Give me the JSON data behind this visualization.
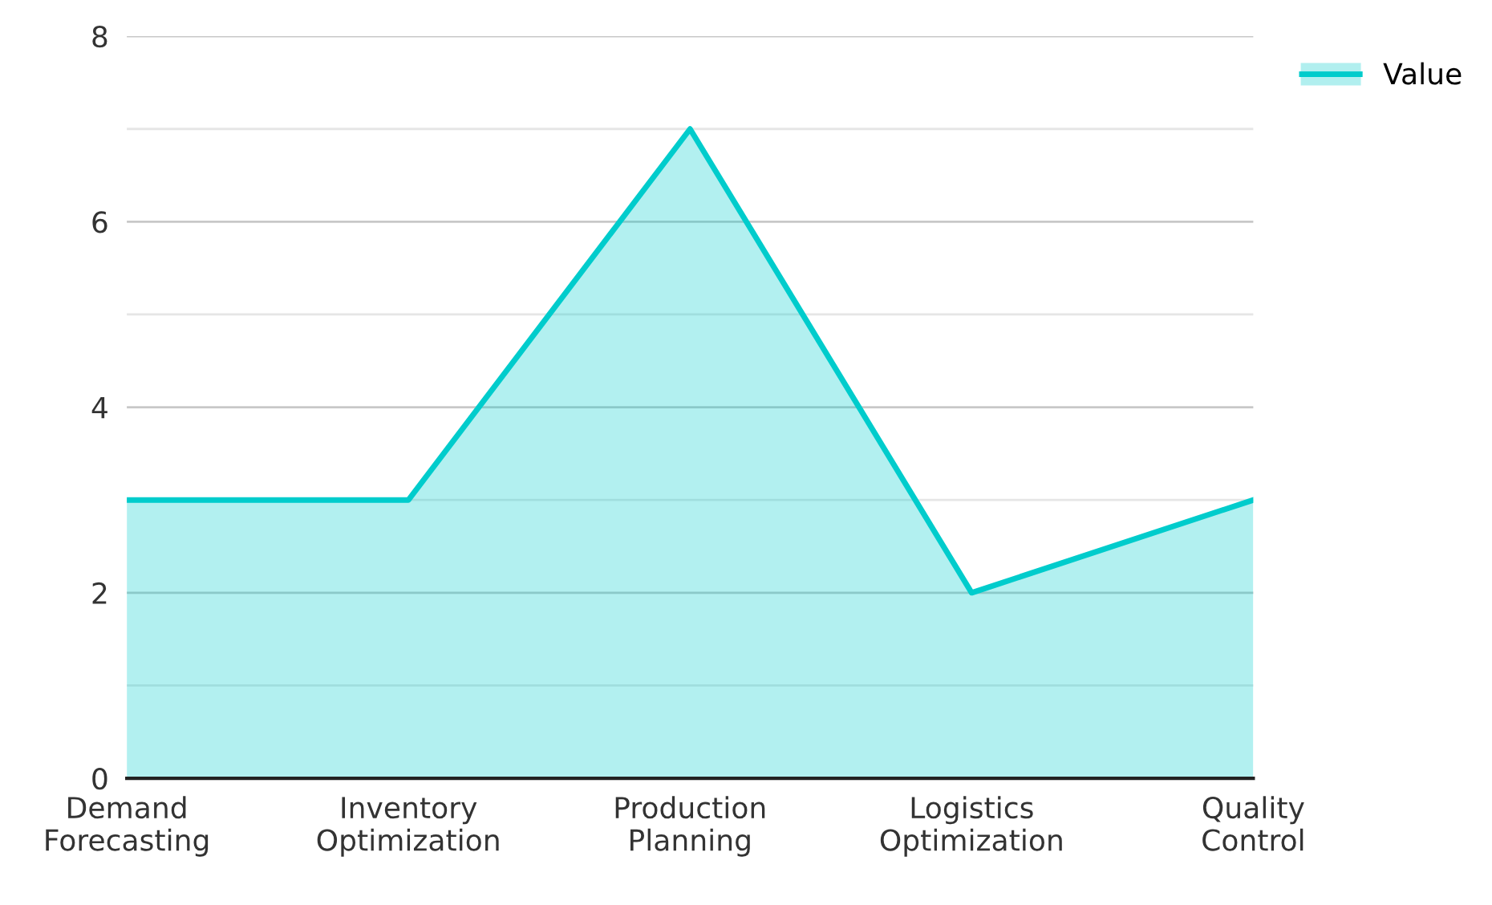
{
  "chart_data": {
    "type": "area",
    "categories": [
      "Demand\nForecasting",
      "Inventory\nOptimization",
      "Production\nPlanning",
      "Logistics\nOptimization",
      "Quality\nControl"
    ],
    "series": [
      {
        "name": "Value",
        "color": "#00cccc",
        "values": [
          3,
          3,
          7,
          2,
          3
        ]
      }
    ],
    "ylim": [
      0,
      8
    ],
    "yticks": [
      0,
      {
        "value": 1,
        "label": null
      },
      2,
      {
        "value": 3,
        "label": null
      },
      4,
      {
        "value": 5,
        "label": null
      },
      6,
      {
        "value": 7,
        "label": null
      },
      8
    ],
    "grid": "y",
    "legend": "top right"
  }
}
